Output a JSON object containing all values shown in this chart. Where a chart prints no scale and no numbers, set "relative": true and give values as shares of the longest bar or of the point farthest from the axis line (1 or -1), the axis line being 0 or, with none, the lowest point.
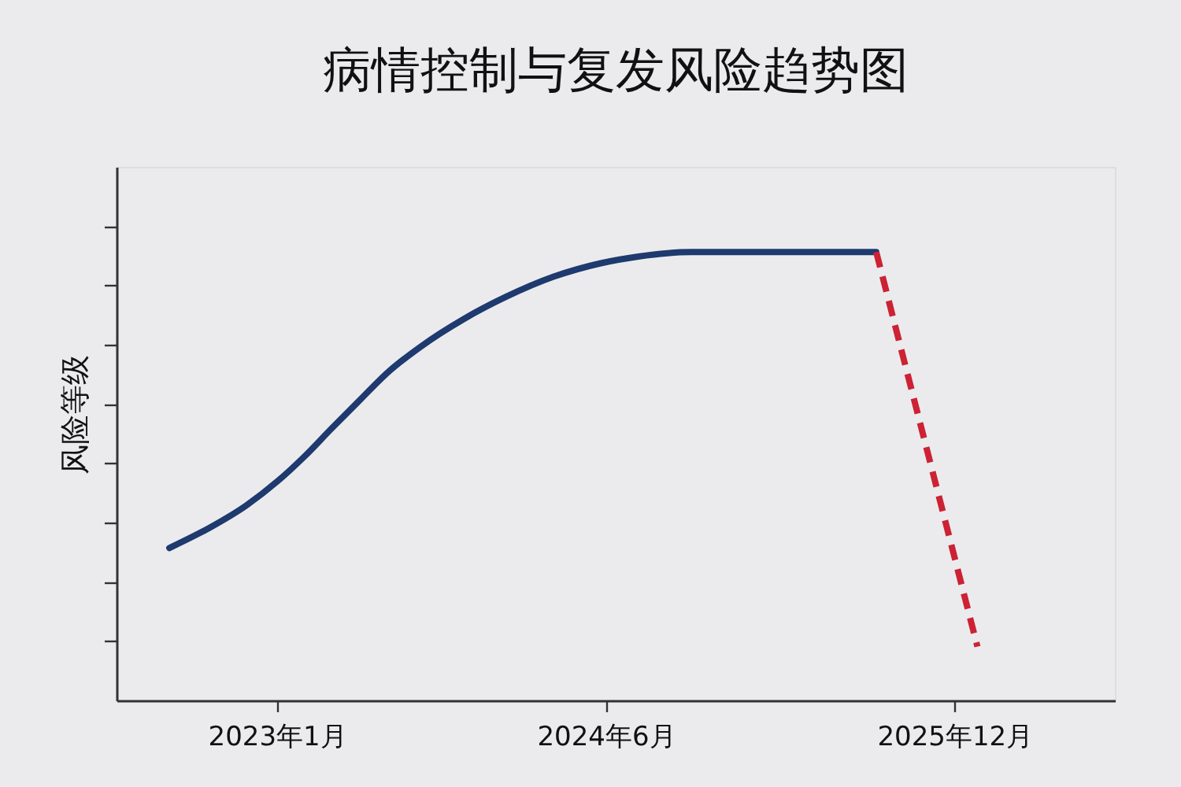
{
  "chart_data": {
    "type": "line",
    "title": "病情控制与复发风险趋势图",
    "ylabel": "风险等级",
    "relative": true,
    "xlim": [
      "2022-04-24",
      "2026-08-10"
    ],
    "xticks": [
      {
        "value": "2023-01",
        "label": "2023年1月"
      },
      {
        "value": "2024-06",
        "label": "2024年6月"
      },
      {
        "value": "2025-12",
        "label": "2025年12月"
      }
    ],
    "series": [
      {
        "color": "#1e3a6e",
        "line_style": "solid",
        "x": [
          "2022-07-16",
          "2022-09-17",
          "2022-11-14",
          "2023-01-03",
          "2023-02-14",
          "2023-03-27",
          "2023-05-08",
          "2023-06-27",
          "2023-08-16",
          "2023-10-21",
          "2023-12-27",
          "2024-03-11",
          "2024-05-24",
          "2024-07-22",
          "2024-10-13",
          "2025-01-04",
          "2025-07-31"
        ],
        "values": [
          0.34,
          0.385,
          0.435,
          0.49,
          0.545,
          0.605,
          0.665,
          0.735,
          0.79,
          0.85,
          0.9,
          0.945,
          0.975,
          0.99,
          1.0,
          1.0,
          1.0
        ]
      },
      {
        "color": "#cc2233",
        "line_style": "dashed",
        "x": [
          "2025-07-31",
          "2026-01-06"
        ],
        "values": [
          1.0,
          0.12
        ]
      }
    ]
  }
}
